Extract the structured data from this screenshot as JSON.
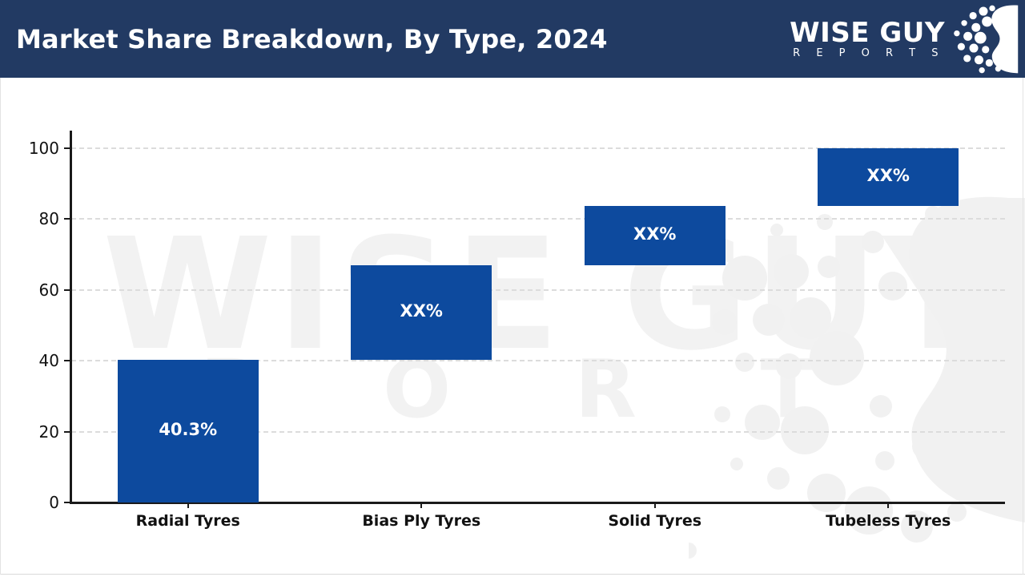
{
  "header": {
    "title": "Market Share Breakdown, By Type, 2024",
    "logo": {
      "line1": "WISE GUY",
      "line2": "R E P O R T S"
    }
  },
  "watermark": {
    "line1": "WISE GUY",
    "line2": "P O R T S"
  },
  "chart_data": {
    "type": "bar",
    "subtype": "floating-segment-waterfall",
    "title": "Market Share Breakdown, By Type, 2024",
    "categories": [
      "Radial Tyres",
      "Bias Ply Tyres",
      "Solid Tyres",
      "Tubeless Tyres"
    ],
    "bars": [
      {
        "category": "Radial Tyres",
        "start": 0,
        "end": 40.3,
        "label": "40.3%"
      },
      {
        "category": "Bias Ply Tyres",
        "start": 40.3,
        "end": 67,
        "label": "XX%"
      },
      {
        "category": "Solid Tyres",
        "start": 67,
        "end": 83.6,
        "label": "XX%"
      },
      {
        "category": "Tubeless Tyres",
        "start": 83.6,
        "end": 100,
        "label": "XX%"
      }
    ],
    "xlabel": "",
    "ylabel": "",
    "ylim": [
      0,
      105
    ],
    "yticks": [
      0,
      20,
      40,
      60,
      80,
      100
    ],
    "grid": "dashed-horizontal",
    "legend": "none",
    "bar_color": "#0d4a9e",
    "value_label_color": "#ffffff"
  },
  "colors": {
    "header_bg": "#223a63",
    "bar": "#0d4a9e",
    "grid": "#dcdcdc",
    "axis": "#1a1a1a",
    "watermark": "#f2f2f2"
  }
}
